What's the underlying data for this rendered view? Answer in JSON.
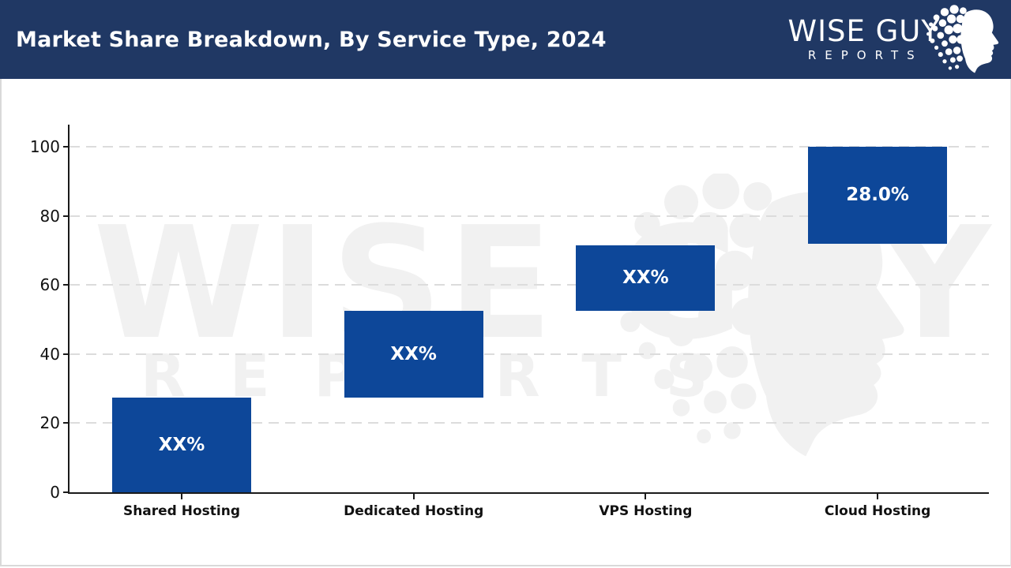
{
  "header": {
    "title": "Market Share Breakdown, By Service Type, 2024",
    "logo": {
      "line1": "WISE GUY",
      "line2": "REPORTS"
    }
  },
  "watermark": {
    "line1": "WISE GUY",
    "line2": "REPORTS"
  },
  "colors": {
    "header_bg": "#203864",
    "bar": "#0d4799",
    "grid": "#dcdcdc",
    "axis": "#1a1a1a",
    "watermark": "#f1f1f1",
    "bar_label_text": "#ffffff",
    "tick_text": "#111111"
  },
  "chart_data": {
    "type": "bar",
    "subtype": "waterfall",
    "title": "Market Share Breakdown, By Service Type, 2024",
    "categories": [
      "Shared Hosting",
      "Dedicated Hosting",
      "VPS Hosting",
      "Cloud Hosting"
    ],
    "segments": [
      {
        "category": "Shared Hosting",
        "from": 0,
        "to": 27.5,
        "label": "XX%"
      },
      {
        "category": "Dedicated Hosting",
        "from": 27.5,
        "to": 52.5,
        "label": "XX%"
      },
      {
        "category": "VPS Hosting",
        "from": 52.5,
        "to": 71.5,
        "label": "XX%"
      },
      {
        "category": "Cloud Hosting",
        "from": 72,
        "to": 100,
        "label": "28.0%",
        "value": 28.0
      }
    ],
    "yticks": [
      0,
      20,
      40,
      60,
      80,
      100
    ],
    "ylim": [
      0,
      105
    ],
    "xlabel": "",
    "ylabel": "",
    "grid": "dashed-horizontal",
    "legend": "none"
  }
}
